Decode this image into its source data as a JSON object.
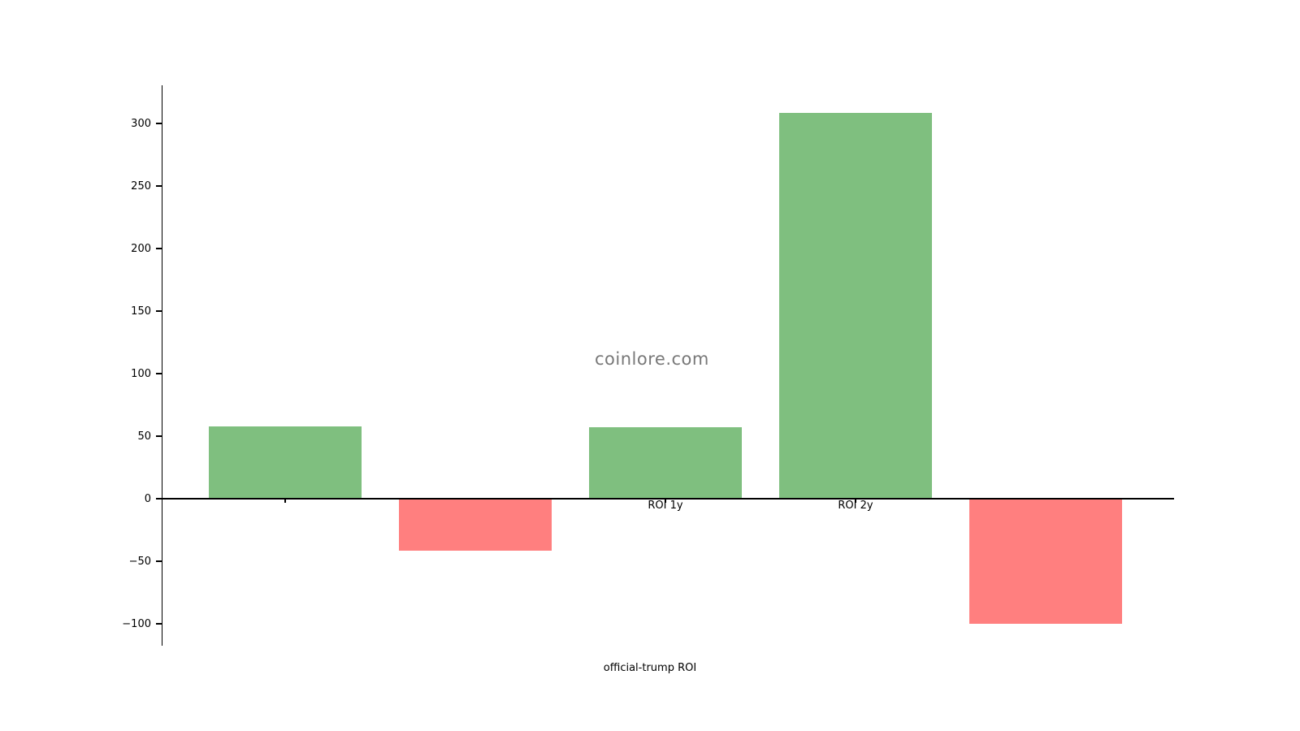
{
  "watermark": "coinlore.com",
  "chart_data": {
    "type": "bar",
    "title": "official-trump ROI",
    "xlabel": "official-trump ROI",
    "ylabel": "",
    "categories": [
      "",
      "",
      "ROI 1y",
      "ROI 2y",
      ""
    ],
    "values": [
      57.8,
      -41.6,
      57.1,
      308.4,
      -100
    ],
    "yticks": [
      300,
      250,
      200,
      150,
      100,
      50,
      0,
      -50,
      -100
    ],
    "ylim": [
      -120,
      330
    ],
    "grid": false,
    "legend": false,
    "positive_color": "#7fbf7f",
    "negative_color": "#ff7f7f",
    "axis_color": "#000000",
    "text_color": "#000000",
    "watermark_color": "#787878",
    "background_color": "#ffffff"
  }
}
